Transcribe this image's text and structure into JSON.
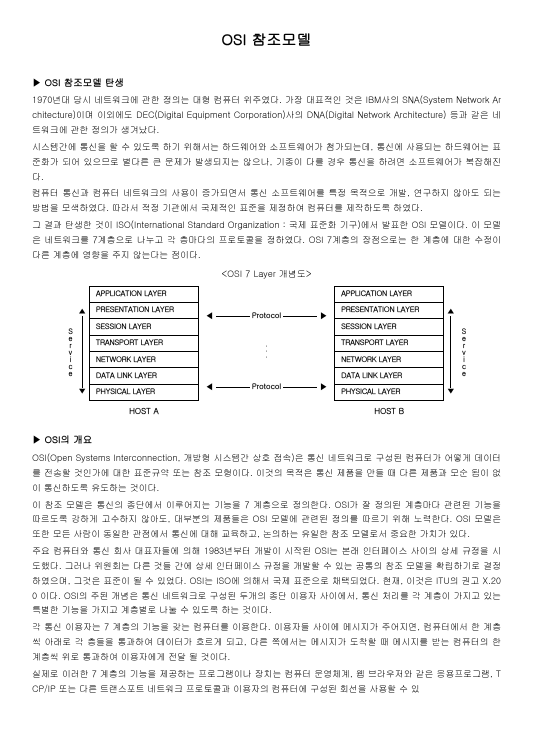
{
  "title": "OSI 참조모델",
  "section1": {
    "heading": "▶ OSI 참조모델 탄생",
    "p1": "1970년대 당시 네트워크에 관한 정의는 대형 컴퓨터 위주였다. 가장 대표적인 것은 IBM사의 SNA(System Network Architecture)이며 이외에도 DEC(Digital Equipment Corporation)사의 DNA(Digital Network Architecture) 등과 같은 네트워크에 관한 정의가 생겨났다.",
    "p2": "시스템간에 통신을 할 수 있도록 하기 위해서는 하드웨어와 소프트웨어가 첨가되는데, 통신에 사용되는 하드웨어는 표준화가 되어 있으므로 별다른 큰 문제가 발생되지는 않으나, 기종이 다를 경우 통신을 하려면 소프트웨어가 복잡해진다.",
    "p3": "컴퓨터 통신과 컴퓨터 네트워크의 사용이 증가되면서 통신 소프트웨어를 특정 목적으로 개발, 연구하지 않아도 되는 방법을 모색하였다. 따라서 적정 기관에서 국제적인 표준을 제정하여 컴퓨터를 제작하도록 하였다.",
    "p4": "그 결과 탄생한 것이 ISO(International Standard Organization : 국제 표준화 기구)에서 발표한 OSI 모델이다. 이 모델은 네트워크를 7계층으로 나누고 각 층마다의 프로토콜을 정하였다. OSI 7계층의 장점으로는 한 계층에 대한 수정이 다른 계층에 영향을 주지 않는다는 점이다."
  },
  "diagram": {
    "caption": "<OSI 7 Layer 개념도>",
    "service": "Service",
    "protocol": "Protocol",
    "hostA": "HOST A",
    "hostB": "HOST B",
    "layers": [
      "APPLICATION LAYER",
      "PRESENTATION LAYER",
      "SESSION LAYER",
      "TRANSPORT LAYER",
      "NETWORK LAYER",
      "DATA LINK LAYER",
      "PHYSICAL LAYER"
    ]
  },
  "section2": {
    "heading": "▶ OSI의 개요",
    "p1": "OSI(Open Systems Interconnection, 개방형 시스템간 상호 접속)은 통신 네트워크로 구성된 컴퓨터가 어떻게 데이터를 전송할 것인가에 대한 표준규약 또는 참조 모형이다. 이것의 목적은 통신 제품을 만들 때 다른 제품과 모순 됨이 없이 통신하도록 유도하는 것이다.",
    "p2": "이 참조 모델은 통신의 종단에서 이루어지는 기능을 7 계층으로 정의한다. OSI가 잘 정의된 계층마다 관련된 기능을 따르도록 강하게 고수하지 않아도, 대부분의 제품들은 OSI 모델에 관련된 정의를 따르기 위해 노력한다. OSI 모델은 또한 모든 사람이 동일한 관점에서 통신에 대해 교육하고, 논의하는 유일한 참조 모델로서 중요한 가치가 있다.",
    "p3": "주요 컴퓨터와 통신 회사 대표자들에 의해 1983년부터 개발이 시작된 OSI는 본래 인터페이스 사이의 상세 규정을 시도했다. 그러나 위원회는 다른 것들 간에 상세 인터페이스 규정을 개발할 수 있는 공통의 참조 모델을 확립하기로 결정하였으며, 그것은 표준이 될 수 있었다. OSI는 ISO에 의해서 국제 표준으로 채택되었다. 현재, 이것은 ITU의 권고 X.200 이다. OSI의 주된 개념은 통신 네트워크로 구성된 두개의 종단 이용자 사이에서, 통신 처리를 각 계층이 가지고 있는 특별한 기능을 가지고 계층별로 나눌 수 있도록 하는 것이다.",
    "p4": "각 통신 이용자는 7 계층의 기능을 갖는 컴퓨터를 이용한다. 이용자들 사이에 메시지가 주어지면, 컴퓨터에서 한 계층씩 아래로 각 층들을 통과하여 데이터가 흐르게 되고, 다른 쪽에서는 메시지가 도착할 때 메시지를 받는 컴퓨터의 한 계층씩 위로 통과하여 이용자에게 전달 될 것이다.",
    "p5": "실제로 이러한 7 계층의 기능을 제공하는 프로그램이나 장치는 컴퓨터 운영체계, 웹 브라우저와 같은 응용프로그램, TCP/IP 또는 다른 트랜스포트 네트워크 프로토콜과 이용자의 컴퓨터에 구성된 회선을 사용할 수 있"
  }
}
